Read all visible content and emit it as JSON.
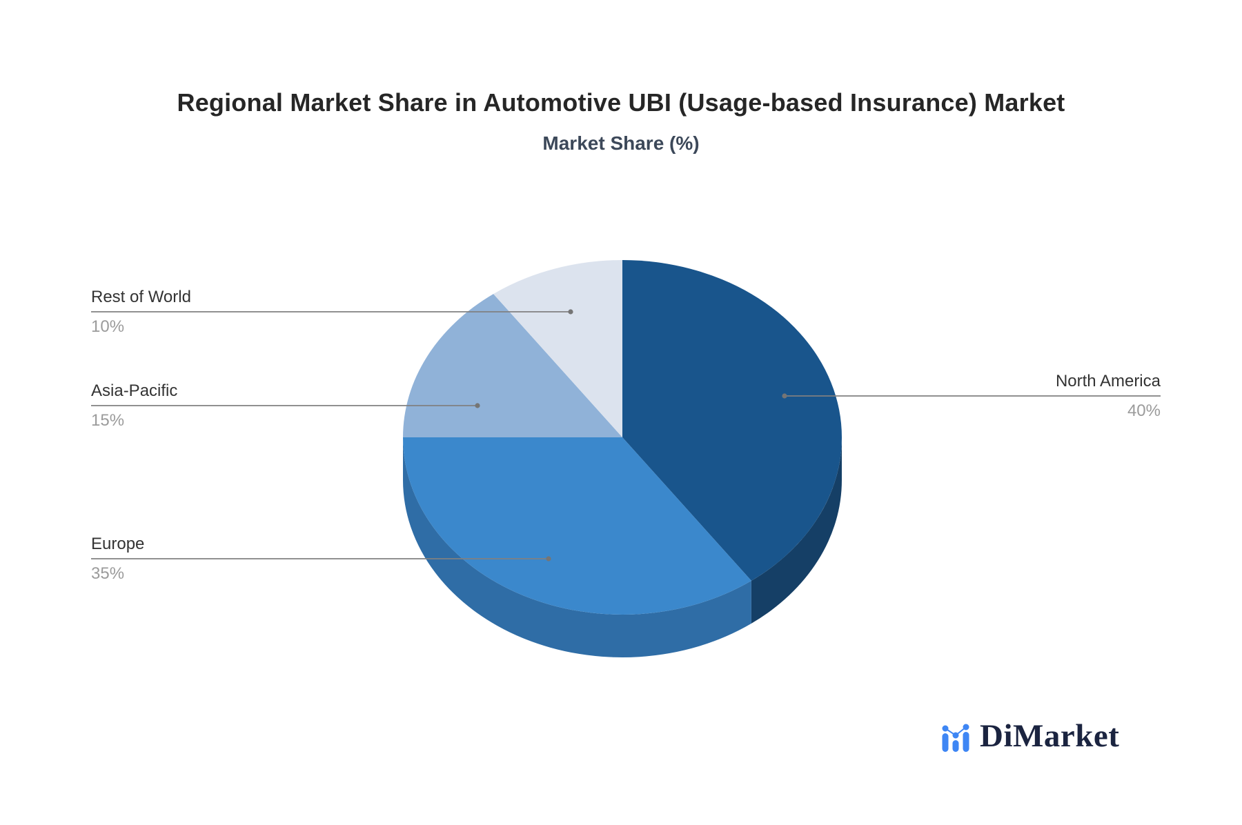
{
  "header": {
    "title": "Regional Market Share in Automotive UBI (Usage-based Insurance) Market",
    "subtitle": "Market Share (%)"
  },
  "chart_data": {
    "type": "pie",
    "style": "3d-pie",
    "title": "Regional Market Share in Automotive UBI (Usage-based Insurance) Market",
    "subtitle": "Market Share (%)",
    "unit": "%",
    "start_angle_deg": 0,
    "direction": "clockwise",
    "legend_position": "callout-labels",
    "series": [
      {
        "label": "North America",
        "value": 40,
        "pct_label": "40%",
        "color": "#19558C",
        "side_color": "#153F66"
      },
      {
        "label": "Europe",
        "value": 35,
        "pct_label": "35%",
        "color": "#3B88CC",
        "side_color": "#2F6DA6"
      },
      {
        "label": "Asia-Pacific",
        "value": 15,
        "pct_label": "15%",
        "color": "#90B2D8",
        "side_color": "#6E94BC"
      },
      {
        "label": "Rest of World",
        "value": 10,
        "pct_label": "10%",
        "color": "#DCE3EE",
        "side_color": "#B8C4D6"
      }
    ],
    "connector_color": "#808080",
    "dot_color": "#757575"
  },
  "branding": {
    "logo_text": "DiMarket",
    "logo_text_color": "#1B2440",
    "logo_accent_color": "#3E86F4"
  }
}
